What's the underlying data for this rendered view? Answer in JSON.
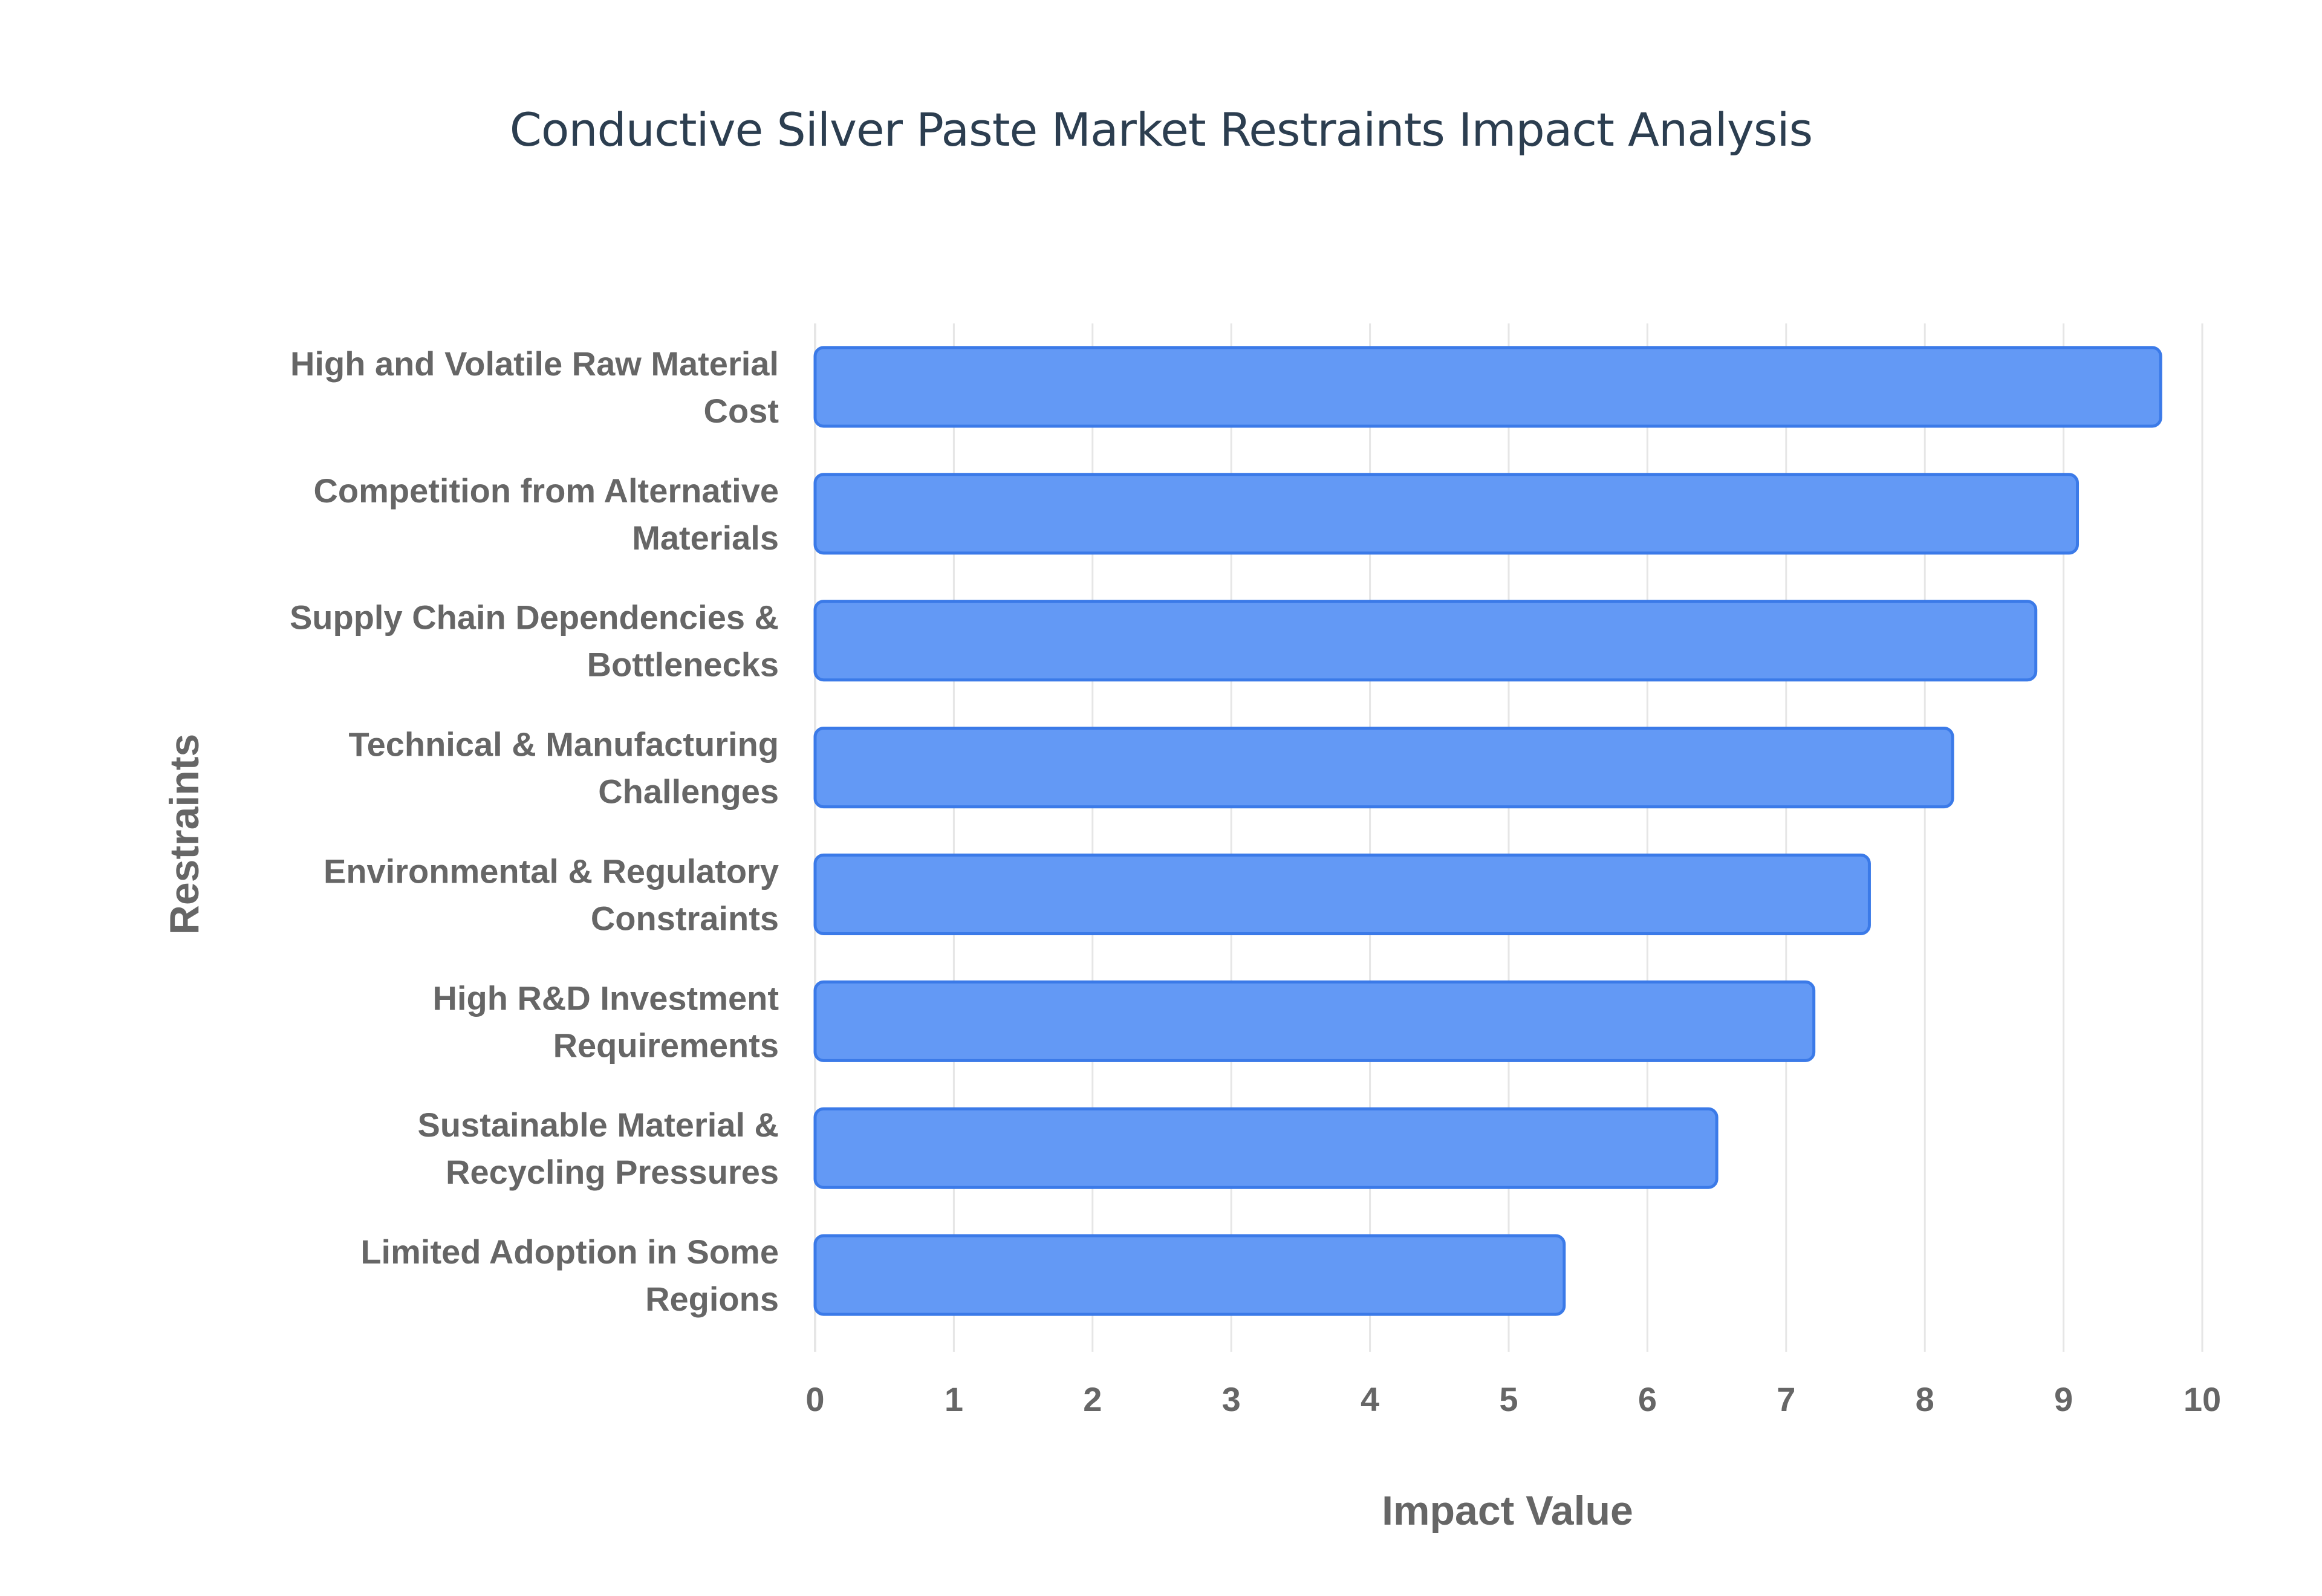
{
  "chart_data": {
    "type": "bar",
    "orientation": "horizontal",
    "title": "Conductive Silver Paste Market Restraints Impact Analysis",
    "xlabel": "Impact Value",
    "ylabel": "Restraints",
    "xlim": [
      0,
      10
    ],
    "xticks": [
      "0",
      "1",
      "2",
      "3",
      "4",
      "5",
      "6",
      "7",
      "8",
      "9",
      "10"
    ],
    "grid": true,
    "legend": "none",
    "categories": [
      [
        "High and Volatile Raw Material",
        "Cost"
      ],
      [
        "Competition from Alternative",
        "Materials"
      ],
      [
        "Supply Chain Dependencies &",
        "Bottlenecks"
      ],
      [
        "Technical & Manufacturing",
        "Challenges"
      ],
      [
        "Environmental & Regulatory",
        "Constraints"
      ],
      [
        "High R&D Investment",
        "Requirements"
      ],
      [
        "Sustainable Material &",
        "Recycling Pressures"
      ],
      [
        "Limited Adoption in Some",
        "Regions"
      ]
    ],
    "values": [
      9.7,
      9.1,
      8.8,
      8.2,
      7.6,
      7.2,
      6.5,
      5.4
    ],
    "colors": {
      "bar_fill": "#6399f5",
      "bar_stroke": "#3b7ae8",
      "grid": "#e6e6e6",
      "text": "#666666",
      "title": "#2c3e50"
    }
  }
}
